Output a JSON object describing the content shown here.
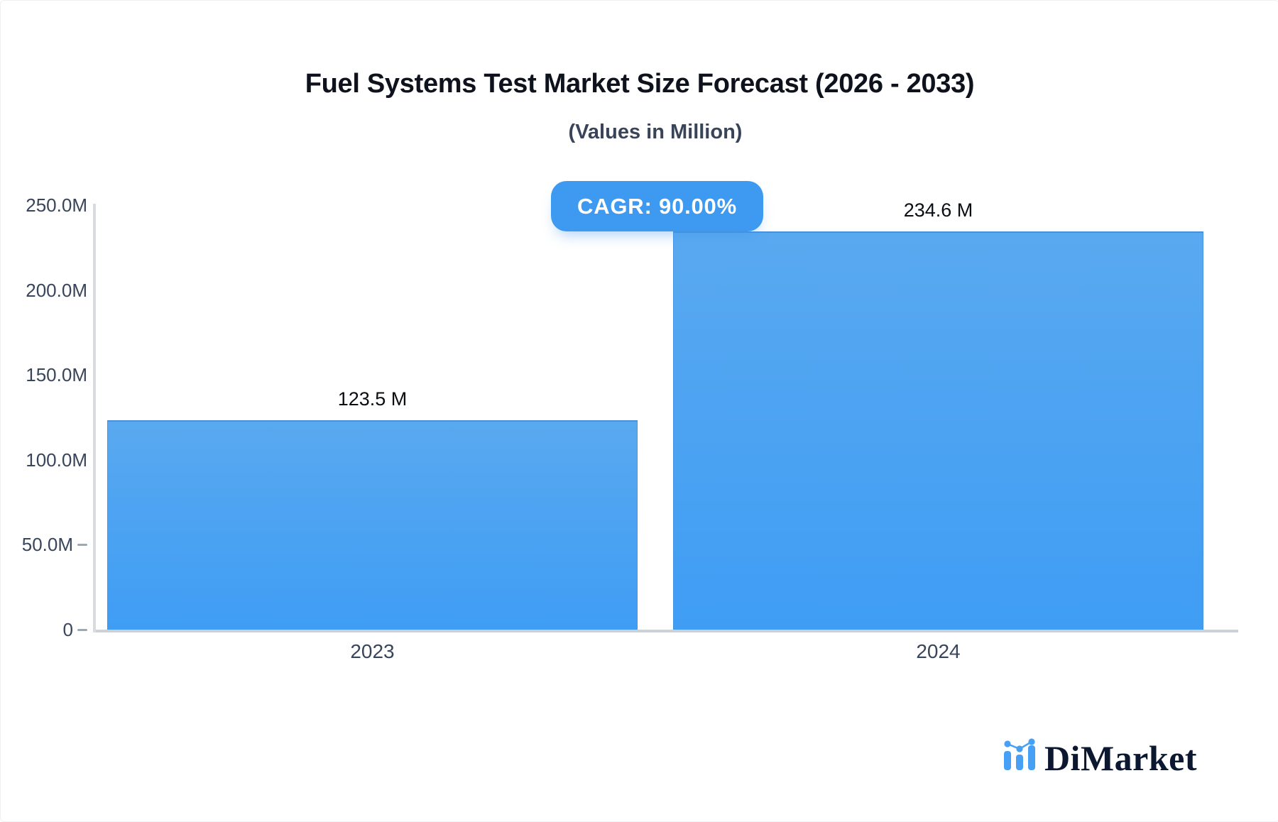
{
  "chart_data": {
    "type": "bar",
    "title": "Fuel Systems Test Market Size Forecast (2026 - 2033)",
    "subtitle": "(Values in Million)",
    "categories": [
      "2023",
      "2024"
    ],
    "values": [
      123.5,
      234.6
    ],
    "value_labels": [
      "123.5 M",
      "234.6 M"
    ],
    "unit": "Million",
    "annotation": {
      "label": "CAGR: 90.00%"
    },
    "xlabel": "",
    "ylabel": "",
    "ylim": [
      0,
      250
    ],
    "y_ticks": [
      {
        "label": "250.0M",
        "value": 250,
        "dash": false
      },
      {
        "label": "200.0M",
        "value": 200,
        "dash": false
      },
      {
        "label": "150.0M",
        "value": 150,
        "dash": false
      },
      {
        "label": "100.0M",
        "value": 100,
        "dash": false
      },
      {
        "label": "50.0M",
        "value": 50,
        "dash": true
      },
      {
        "label": "0",
        "value": 0,
        "dash": true
      }
    ],
    "grid": false,
    "legend": "none"
  },
  "logo": {
    "brand": "DiMarket",
    "icon": "bar-chart-logo-icon"
  },
  "colors": {
    "title_text": "#0d121c",
    "subtitle_text": "#3a4458",
    "badge_bg": "#3d9af0",
    "badge_text": "#ffffff",
    "bar_gradient_top": "#59a9f0",
    "bar_gradient_bottom": "#3f9df4",
    "bar_border": "#4795e0",
    "bar_border_top": "#4a90d8",
    "y_axis_line": "#d8dbe0",
    "x_axis_line": "#ccd1d8",
    "tick_dash": "#9fa8b1",
    "axis_label_text": "#39455a",
    "value_label_text": "#0a0d12",
    "logo_blue": "#47a0f4",
    "logo_text": "#0c1730"
  }
}
